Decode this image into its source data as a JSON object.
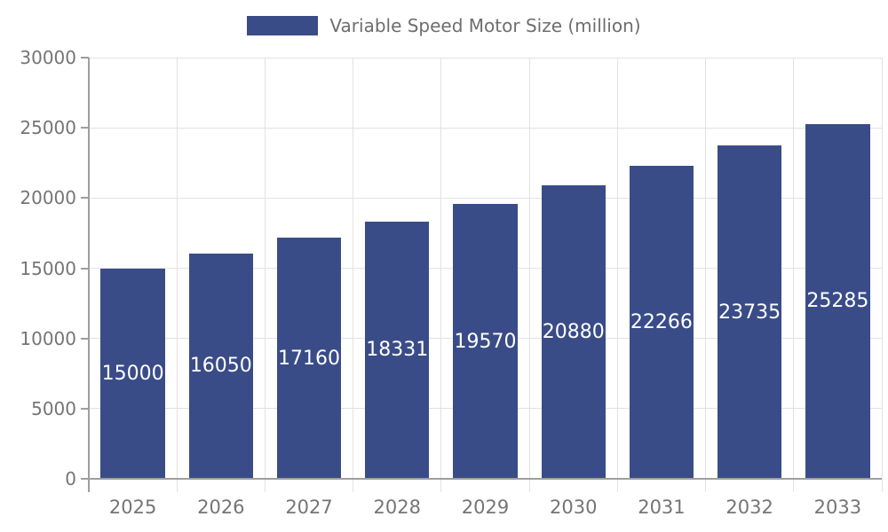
{
  "chart_data": {
    "type": "bar",
    "title": "Variable Speed Motor Size (million)",
    "categories": [
      "2025",
      "2026",
      "2027",
      "2028",
      "2029",
      "2030",
      "2031",
      "2032",
      "2033"
    ],
    "values": [
      15000,
      16050,
      17160,
      18331,
      19570,
      20880,
      22266,
      23735,
      25285
    ],
    "xlabel": "",
    "ylabel": "",
    "ylim": [
      0,
      30000
    ],
    "yticks": [
      0,
      5000,
      10000,
      15000,
      20000,
      25000,
      30000
    ],
    "grid": true,
    "legend_position": "top-center",
    "legend_entries": [
      "Variable Speed Motor Size (million)"
    ],
    "colors": {
      "bar": "#3A4C88",
      "bar_label": "#FFFFFF",
      "axis_text": "#757575",
      "legend_text": "#6E6E6E",
      "gridline": "#E2E2E2",
      "axis_line": "#9E9E9E"
    }
  }
}
